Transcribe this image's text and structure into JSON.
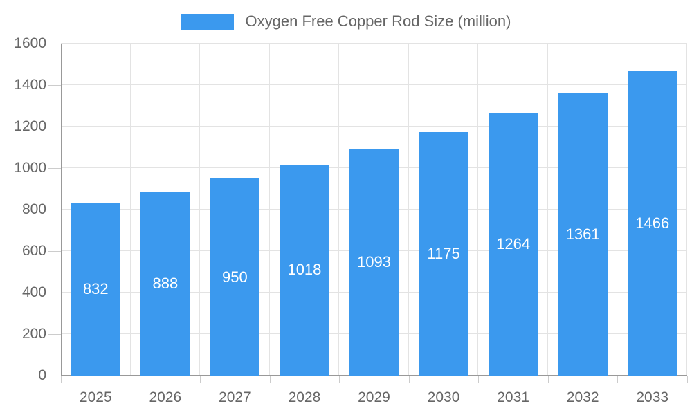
{
  "legend": {
    "label": "Oxygen Free Copper Rod Size (million)"
  },
  "chart_data": {
    "type": "bar",
    "title": "Oxygen Free Copper Rod Size (million)",
    "series_name": "Oxygen Free Copper Rod Size (million)",
    "categories": [
      "2025",
      "2026",
      "2027",
      "2028",
      "2029",
      "2030",
      "2031",
      "2032",
      "2033"
    ],
    "values": [
      832,
      888,
      950,
      1018,
      1093,
      1175,
      1264,
      1361,
      1466
    ],
    "data_labels": [
      "832",
      "888",
      "950",
      "1018",
      "1093",
      "1175",
      "1264",
      "1361",
      "1466"
    ],
    "ytick_labels": [
      "0",
      "200",
      "400",
      "600",
      "800",
      "1000",
      "1200",
      "1400",
      "1600"
    ],
    "xlabel": "",
    "ylabel": "",
    "ylim": [
      0,
      1600
    ],
    "ytick_step": 200,
    "grid": true,
    "legend_position": "top",
    "colors": {
      "bar": "#3B99EE",
      "bar_label": "#FFFFFF",
      "axis_line": "#999999",
      "grid_line": "#E3E3E3",
      "tick_mark": "#CCCCCC",
      "text": "#666666"
    }
  }
}
